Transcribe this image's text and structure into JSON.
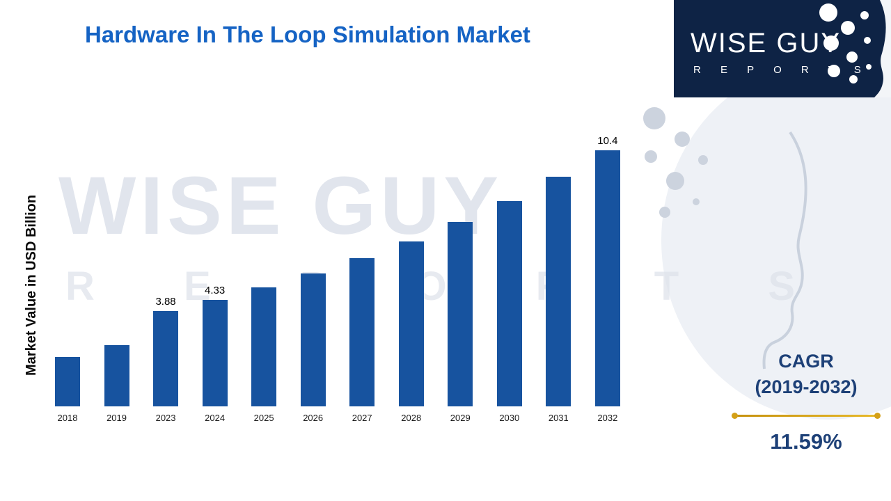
{
  "page": {
    "background": "#ffffff"
  },
  "header": {
    "title": "Hardware In The Loop Simulation Market",
    "title_color": "#1563c4"
  },
  "logo": {
    "brand": "WISE GUY",
    "sub": "R E P O R T S",
    "bg_color": "#0e2345"
  },
  "watermark": {
    "line1": "WISE GUY",
    "line2": "R E P O R T S"
  },
  "chart_data": {
    "type": "bar",
    "title": "Hardware In The Loop Simulation Market",
    "xlabel": "",
    "ylabel": "Market Value in USD Billion",
    "categories": [
      "2018",
      "2019",
      "2023",
      "2024",
      "2025",
      "2026",
      "2027",
      "2028",
      "2029",
      "2030",
      "2031",
      "2032"
    ],
    "values": [
      2.0,
      2.5,
      3.88,
      4.33,
      4.83,
      5.39,
      6.01,
      6.71,
      7.49,
      8.35,
      9.32,
      10.4
    ],
    "data_labels": {
      "2023": "3.88",
      "2024": "4.33",
      "2032": "10.4"
    },
    "bar_color": "#17539f",
    "ylim": [
      0,
      11
    ],
    "grid": false,
    "legend": "none"
  },
  "cagr": {
    "label": "CAGR",
    "range": "(2019-2032)",
    "value": "11.59%",
    "text_color": "#1d4077",
    "accent_color": "#d4a017"
  }
}
